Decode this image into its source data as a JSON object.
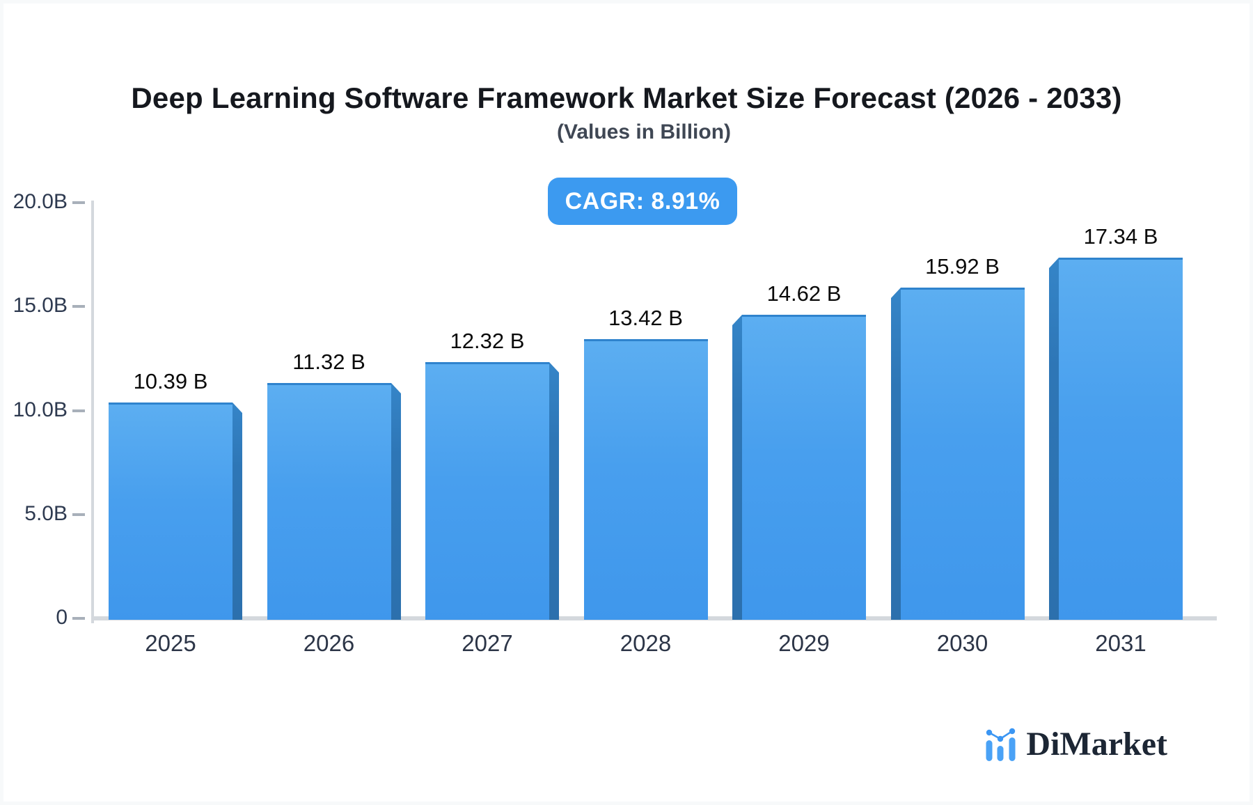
{
  "page": {
    "background": "#f7f9fa",
    "card_background": "#ffffff"
  },
  "header": {
    "title": "Deep Learning Software Framework Market Size Forecast (2026 - 2033)",
    "subtitle": "(Values in Billion)",
    "cagr_badge": "CAGR: 8.91%",
    "badge_color": "#3c9af0"
  },
  "chart_data": {
    "type": "bar",
    "title": "Deep Learning Software Framework Market Size Forecast (2026 - 2033)",
    "subtitle": "(Values in Billion)",
    "categories": [
      "2025",
      "2026",
      "2027",
      "2028",
      "2029",
      "2030",
      "2031"
    ],
    "values": [
      10.39,
      11.32,
      12.32,
      13.42,
      14.62,
      15.92,
      17.34
    ],
    "value_labels": [
      "10.39 B",
      "11.32 B",
      "12.32 B",
      "13.42 B",
      "14.62 B",
      "15.92 B",
      "17.34 B"
    ],
    "cagr_label": "CAGR: 8.91%",
    "ylim": [
      0,
      20
    ],
    "yticks": [
      {
        "value": 0,
        "label": "0"
      },
      {
        "value": 5,
        "label": "5.0B"
      },
      {
        "value": 10,
        "label": "10.0B"
      },
      {
        "value": 15,
        "label": "15.0B"
      },
      {
        "value": 20,
        "label": "20.0B"
      }
    ],
    "xlabel": "",
    "ylabel": "",
    "grid": "off",
    "legend": "none",
    "style": "3d-bars",
    "bar_color_top": "#5caef1",
    "bar_color_bottom": "#3f97ec",
    "bar_side_color": "#2e76b6",
    "axis_color": "#d4d8dd",
    "tick_color": "#a8b0ba"
  },
  "footer": {
    "brand": "DiMarket",
    "logo_icon": "mini-bar-chart-icon",
    "logo_color": "#4aa2f6"
  }
}
